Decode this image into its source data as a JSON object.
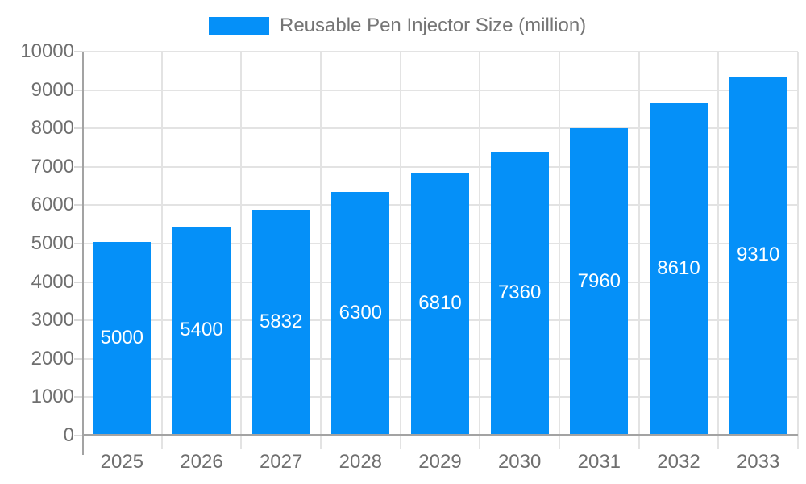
{
  "legend": {
    "label": "Reusable Pen Injector Size (million)"
  },
  "colors": {
    "bar": "#0590f8",
    "grid": "#e3e3e3",
    "axis": "#a3a3a3",
    "tick": "#d9d9d9",
    "axis_text": "#6f6f6f",
    "legend_text": "#757575",
    "value_text": "#ffffff",
    "background": "#ffffff"
  },
  "chart_data": {
    "type": "bar",
    "title": "",
    "xlabel": "",
    "ylabel": "",
    "categories": [
      "2025",
      "2026",
      "2027",
      "2028",
      "2029",
      "2030",
      "2031",
      "2032",
      "2033"
    ],
    "series": [
      {
        "name": "Reusable Pen Injector Size (million)",
        "values": [
          5000,
          5400,
          5832,
          6300,
          6810,
          7360,
          7960,
          8610,
          9310
        ]
      }
    ],
    "value_labels_shown": true,
    "value_label_position": "inside-center",
    "ylim": [
      0,
      10000
    ],
    "y_tick_step": 1000,
    "y_tick_labels": [
      "0",
      "1000",
      "2000",
      "3000",
      "4000",
      "5000",
      "6000",
      "7000",
      "8000",
      "9000",
      "10000"
    ],
    "grid": true,
    "legend_position": "top"
  }
}
